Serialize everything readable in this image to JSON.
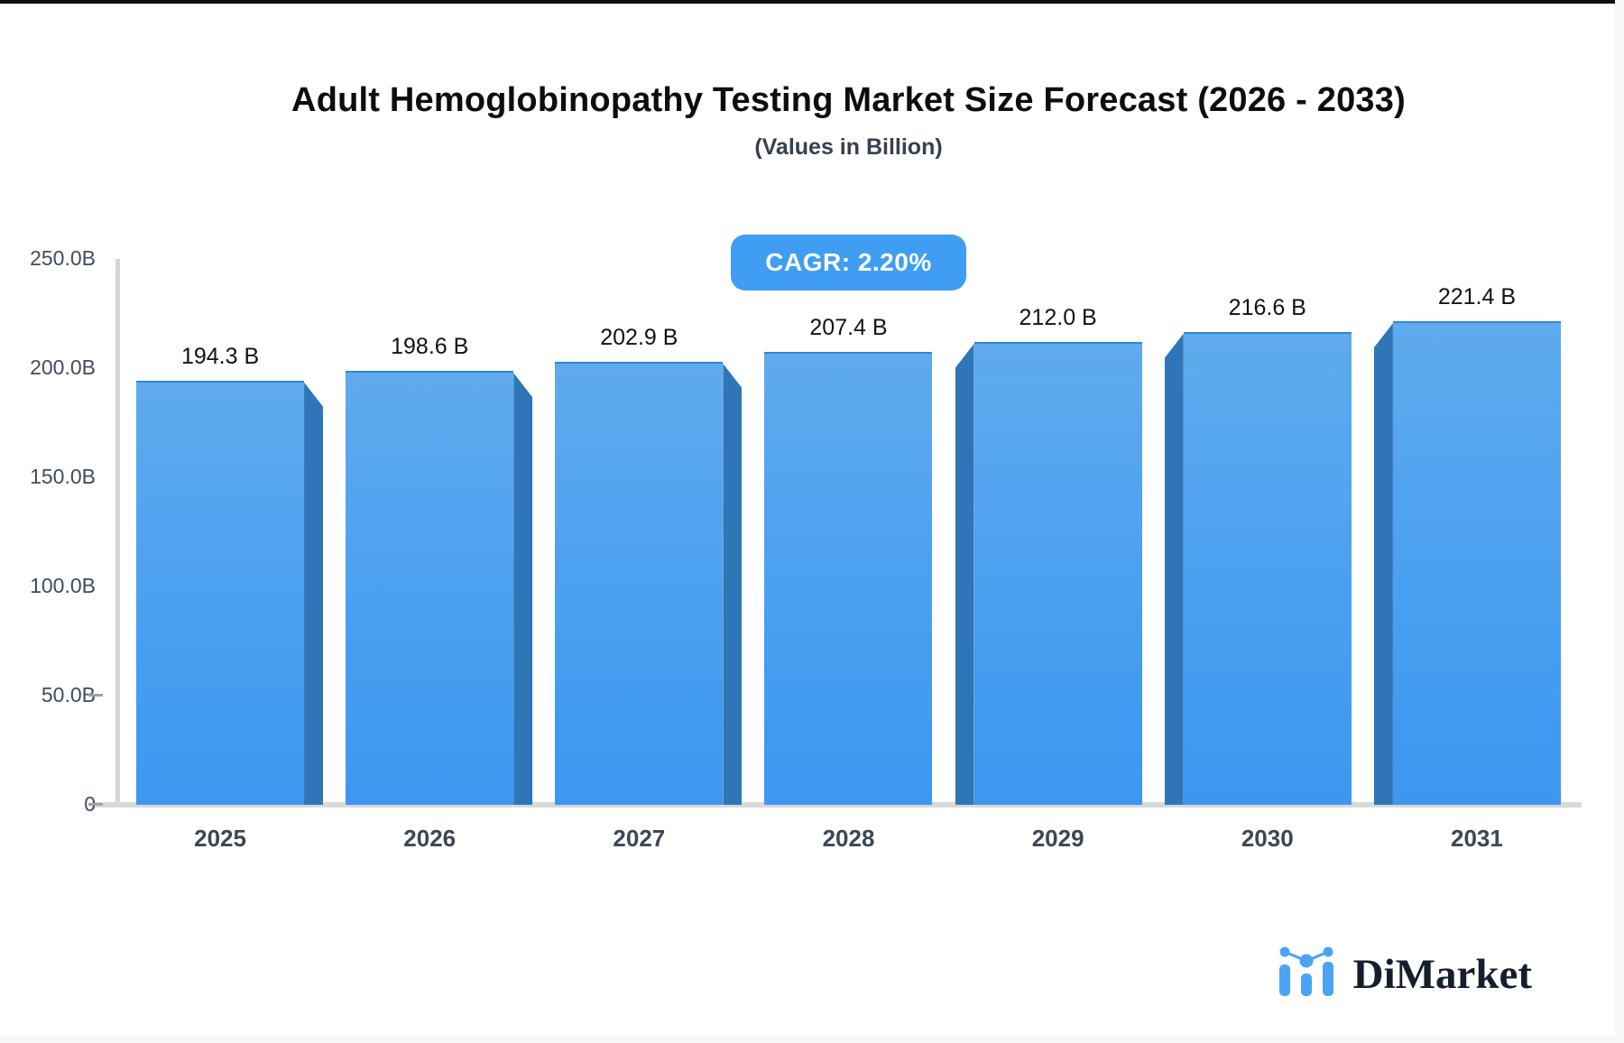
{
  "header": {
    "title": "Adult Hemoglobinopathy Testing Market Size Forecast (2026 - 2033)",
    "subtitle": "(Values in Billion)",
    "cagr_badge": "CAGR: 2.20%"
  },
  "branding": {
    "logo_text": "DiMarket",
    "logo_icon": "bar-chart-trend-icon"
  },
  "colors": {
    "bar_face_top": "#60aaee",
    "bar_face_bottom": "#3b97f0",
    "bar_side": "#2e76b7",
    "badge_background": "#3f9ef2",
    "badge_text": "#ffffff",
    "axis_line": "#d3d5dd",
    "baseline": "#d9d9d9",
    "tick_label": "#3f4c5e",
    "x_label": "#3b4754",
    "title_text": "#0d0d0d",
    "logo_blue": "#4aa3f5",
    "logo_navy": "#141e2c"
  },
  "chart_data": {
    "type": "bar",
    "title": "Adult Hemoglobinopathy Testing Market Size Forecast (2026 - 2033)",
    "subtitle": "(Values in Billion)",
    "annotation": "CAGR: 2.20%",
    "categories": [
      "2025",
      "2026",
      "2027",
      "2028",
      "2029",
      "2030",
      "2031"
    ],
    "values": [
      194.3,
      198.6,
      202.9,
      207.4,
      212.0,
      216.6,
      221.4
    ],
    "value_labels": [
      "194.3 B",
      "198.6 B",
      "202.9 B",
      "207.4 B",
      "212.0 B",
      "216.6 B",
      "221.4 B"
    ],
    "y_ticks": [
      "250.0B",
      "200.0B",
      "150.0B",
      "100.0B",
      "50.0B",
      "0"
    ],
    "ylim": [
      0,
      250
    ],
    "xlabel": "",
    "ylabel": "",
    "grid": false,
    "legend": false,
    "style_note": "3d extruded blue gradient bars, perspective vanishing at center bar"
  }
}
